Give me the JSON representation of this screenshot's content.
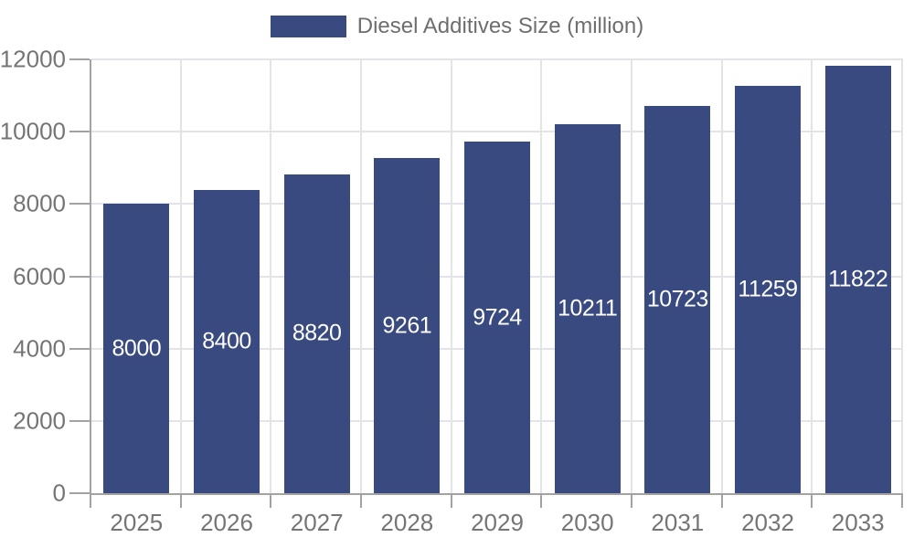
{
  "chart_data": {
    "type": "bar",
    "title": "Diesel Additives Size (million)",
    "legend": {
      "label": "Diesel Additives Size (million)",
      "position": "top-center"
    },
    "categories": [
      "2025",
      "2026",
      "2027",
      "2028",
      "2029",
      "2030",
      "2031",
      "2032",
      "2033"
    ],
    "series": [
      {
        "name": "Diesel Additives Size (million)",
        "values": [
          8000,
          8400,
          8820,
          9261,
          9724,
          10211,
          10723,
          11259,
          11822
        ]
      }
    ],
    "xlabel": "",
    "ylabel": "",
    "ylim": [
      0,
      12000
    ],
    "yticks": [
      0,
      2000,
      4000,
      6000,
      8000,
      10000,
      12000
    ],
    "grid": "horizontal-and-vertical",
    "value_labels": "inside-center-white",
    "colors": {
      "bar": "#394A81",
      "value_label": "#ffffff",
      "grid_line": "#e4e4e8",
      "axis_line": "#a2a2a2",
      "tick_text": "#757575",
      "legend_text": "#6e6e6e",
      "background": "#ffffff"
    }
  }
}
